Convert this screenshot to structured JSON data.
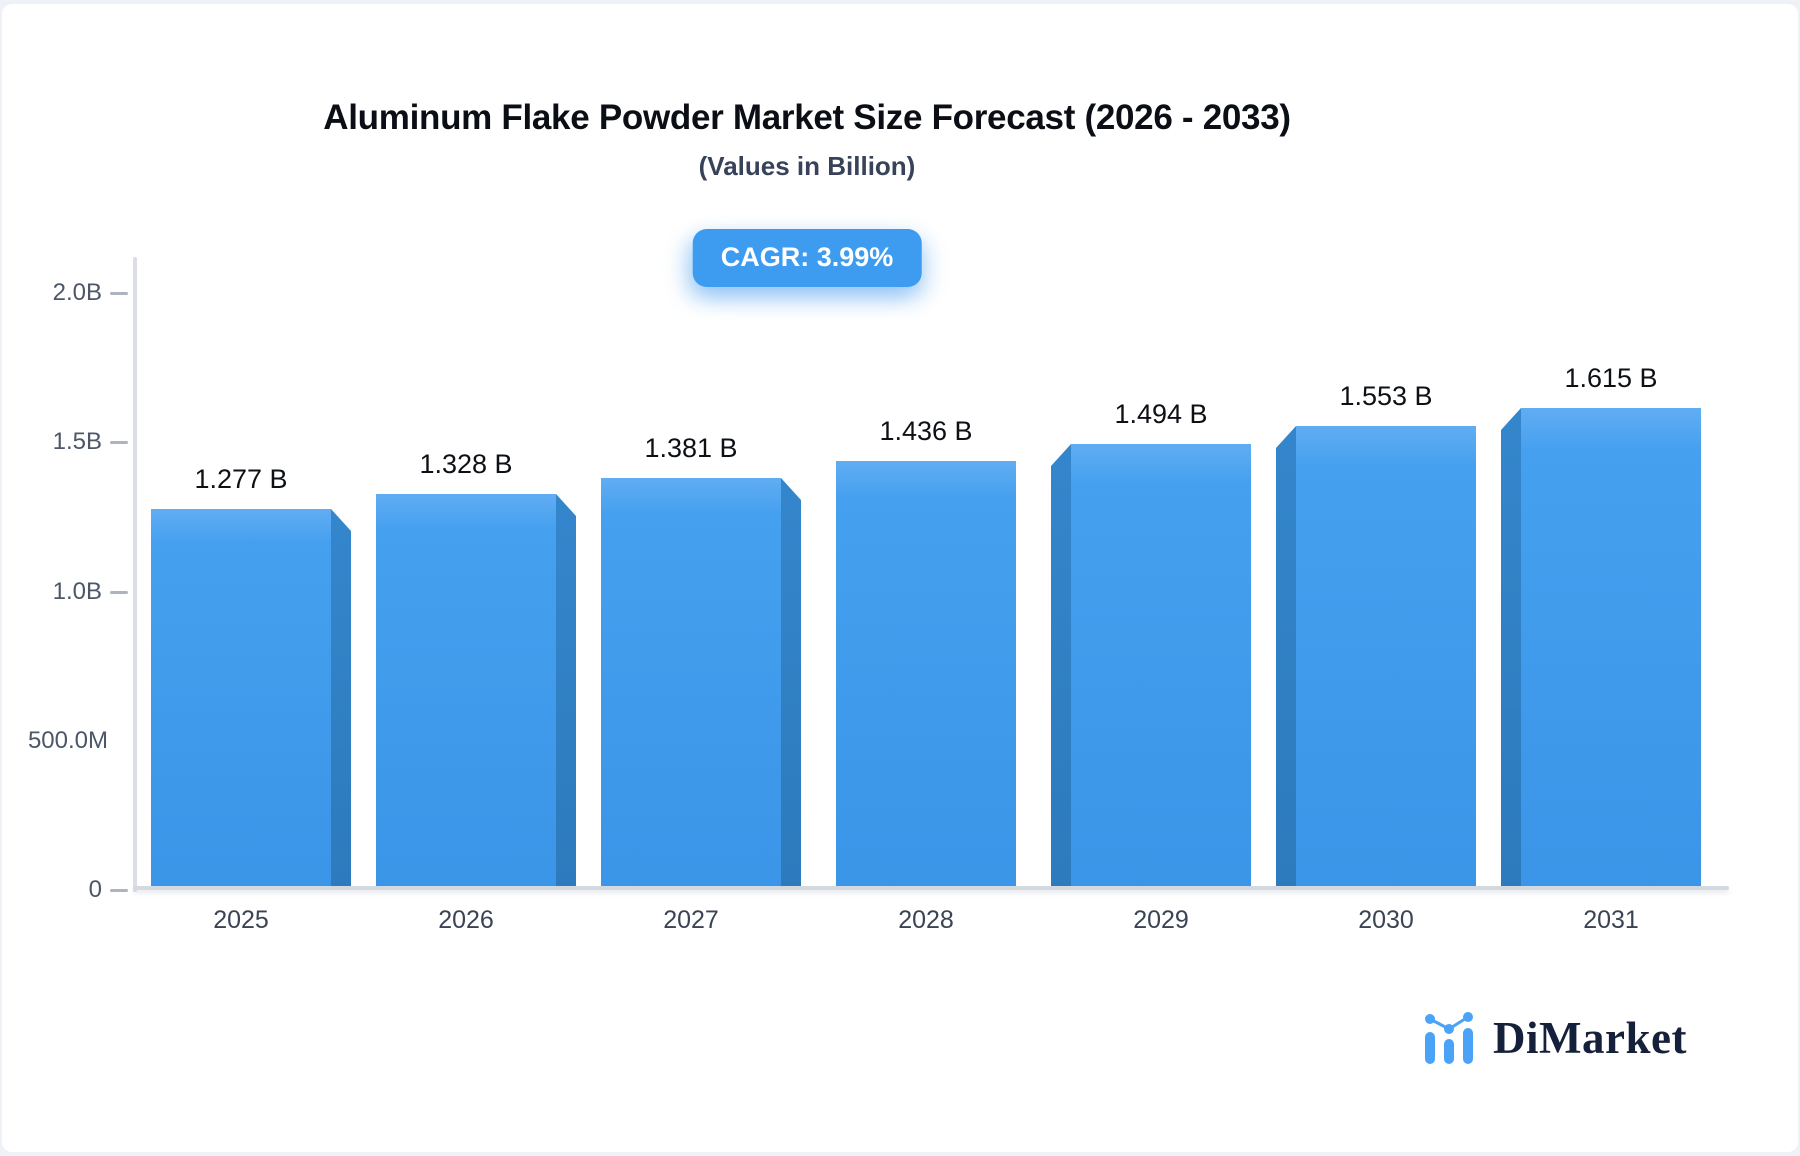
{
  "header": {
    "title": "Aluminum Flake Powder Market Size Forecast (2026 - 2033)",
    "subtitle": "(Values in Billion)",
    "cagr_label": "CAGR: 3.99%"
  },
  "branding": {
    "name": "DiMarket"
  },
  "colors": {
    "bar_front_top": "#61adf3",
    "bar_front_bottom": "#3b95e8",
    "bar_side": "#2e7dc1",
    "badge": "#3e9cf0",
    "axis_line": "#d4d8df",
    "tick_text": "#4d5768",
    "brand_navy": "#15203a"
  },
  "chart_data": {
    "type": "bar",
    "title": "Aluminum Flake Powder Market Size Forecast (2026 - 2033)",
    "subtitle": "(Values in Billion)",
    "categories": [
      "2025",
      "2026",
      "2027",
      "2028",
      "2029",
      "2030",
      "2031"
    ],
    "values": [
      1.277,
      1.328,
      1.381,
      1.436,
      1.494,
      1.553,
      1.615
    ],
    "bar_labels": [
      "1.277 B",
      "1.328 B",
      "1.381 B",
      "1.436 B",
      "1.494 B",
      "1.553 B",
      "1.615 B"
    ],
    "unit": "Billion",
    "cagr": "3.99%",
    "xlabel": "",
    "ylabel": "",
    "ylim": [
      0,
      2.0
    ],
    "yticks": [
      {
        "value": 2.0,
        "label": "2.0B",
        "dash": true
      },
      {
        "value": 1.5,
        "label": "1.5B",
        "dash": true
      },
      {
        "value": 1.0,
        "label": "1.0B",
        "dash": true
      },
      {
        "value": 0.5,
        "label": "500.0M",
        "dash": false
      },
      {
        "value": 0.0,
        "label": "0",
        "dash": true
      }
    ],
    "grid": false,
    "legend": false
  }
}
